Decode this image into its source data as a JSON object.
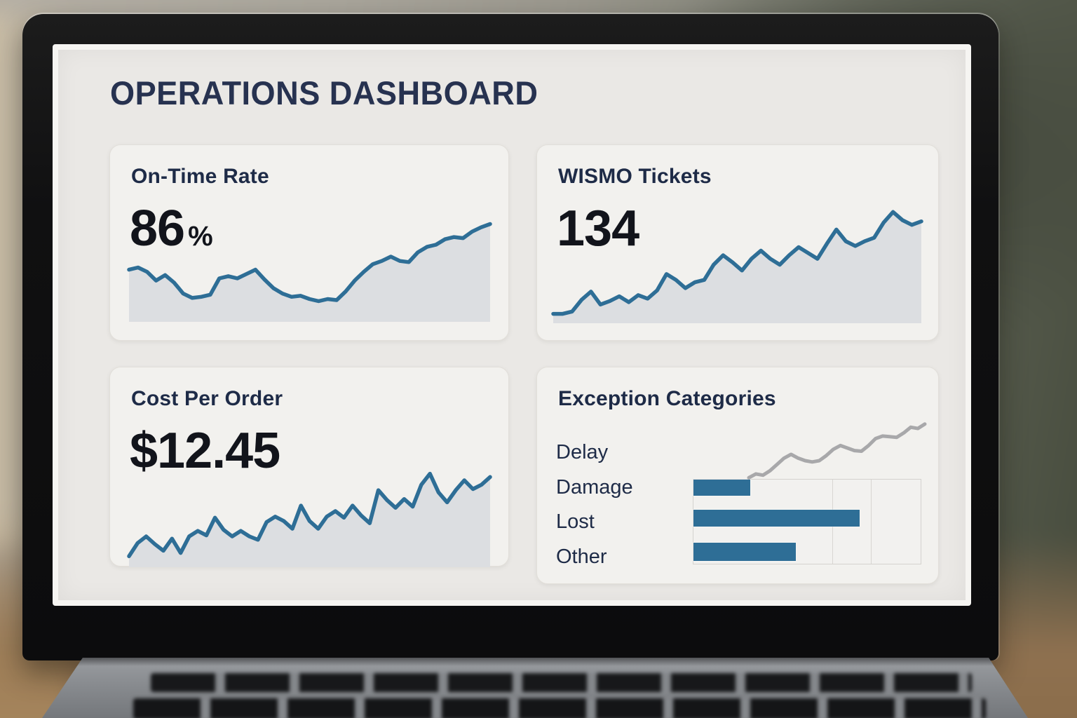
{
  "title": "OPERATIONS DASHBOARD",
  "cards": [
    {
      "title": "On-Time Rate",
      "value": "86",
      "value_suffix": "%"
    },
    {
      "title": "WISMO Tickets",
      "value": "134",
      "value_suffix": ""
    },
    {
      "title": "Cost Per Order",
      "value": "$12.45",
      "value_suffix": ""
    },
    {
      "title": "Exception Categories"
    }
  ],
  "chart_data": [
    {
      "type": "line",
      "title": "On-Time Rate trend",
      "style": "sparkline-area",
      "axes_labeled": false,
      "legend": "none",
      "grid": false,
      "line_color": "#2e6e96",
      "fill_color": "#dcdee1",
      "y_normalized": [
        0.48,
        0.5,
        0.46,
        0.38,
        0.43,
        0.36,
        0.26,
        0.22,
        0.23,
        0.25,
        0.4,
        0.42,
        0.4,
        0.44,
        0.48,
        0.39,
        0.31,
        0.26,
        0.23,
        0.24,
        0.21,
        0.19,
        0.21,
        0.2,
        0.28,
        0.38,
        0.46,
        0.53,
        0.56,
        0.6,
        0.56,
        0.55,
        0.64,
        0.69,
        0.71,
        0.76,
        0.78,
        0.77,
        0.83,
        0.87,
        0.9
      ]
    },
    {
      "type": "line",
      "title": "WISMO Tickets trend",
      "style": "sparkline-area",
      "axes_labeled": false,
      "legend": "none",
      "grid": false,
      "line_color": "#2e6e96",
      "fill_color": "#dcdee1",
      "y_normalized": [
        0.08,
        0.08,
        0.1,
        0.2,
        0.27,
        0.16,
        0.19,
        0.23,
        0.18,
        0.24,
        0.21,
        0.28,
        0.42,
        0.37,
        0.3,
        0.35,
        0.37,
        0.5,
        0.58,
        0.52,
        0.45,
        0.55,
        0.62,
        0.55,
        0.5,
        0.58,
        0.65,
        0.6,
        0.55,
        0.68,
        0.8,
        0.7,
        0.66,
        0.7,
        0.73,
        0.86,
        0.95,
        0.88,
        0.84,
        0.87
      ]
    },
    {
      "type": "line",
      "title": "Cost Per Order trend",
      "style": "sparkline-area",
      "axes_labeled": false,
      "legend": "none",
      "grid": false,
      "line_color": "#2e6e96",
      "fill_color": "#dcdee1",
      "y_normalized": [
        0.1,
        0.22,
        0.28,
        0.21,
        0.15,
        0.26,
        0.13,
        0.28,
        0.33,
        0.29,
        0.45,
        0.34,
        0.28,
        0.33,
        0.28,
        0.25,
        0.41,
        0.46,
        0.42,
        0.35,
        0.56,
        0.42,
        0.35,
        0.46,
        0.51,
        0.45,
        0.56,
        0.47,
        0.4,
        0.7,
        0.61,
        0.54,
        0.62,
        0.55,
        0.75,
        0.85,
        0.68,
        0.59,
        0.7,
        0.79,
        0.71,
        0.75,
        0.82
      ]
    },
    {
      "type": "bar",
      "orientation": "horizontal",
      "title": "Exception Categories",
      "categories": [
        "Delay",
        "Damage",
        "Lost",
        "Other"
      ],
      "values_pct_of_axis": [
        0,
        25,
        73,
        45
      ],
      "bar_color": "#2e6e96",
      "gridlines_pct": [
        61,
        78
      ],
      "axes_labeled": false,
      "overlay_trendline": {
        "color": "#a8a8aa",
        "y_normalized": [
          0.03,
          0.09,
          0.07,
          0.14,
          0.24,
          0.34,
          0.4,
          0.34,
          0.3,
          0.28,
          0.3,
          0.38,
          0.48,
          0.54,
          0.5,
          0.46,
          0.45,
          0.54,
          0.65,
          0.69,
          0.68,
          0.67,
          0.74,
          0.83,
          0.81,
          0.88
        ]
      }
    }
  ],
  "colors": {
    "accent_blue": "#2e6e96",
    "navy_text": "#1e2b47",
    "value_text": "#12141b",
    "card_bg": "#f2f1ee",
    "screen_bg": "#eae8e5",
    "spark_fill": "#dcdee1",
    "trend_gray": "#a8a8aa"
  }
}
